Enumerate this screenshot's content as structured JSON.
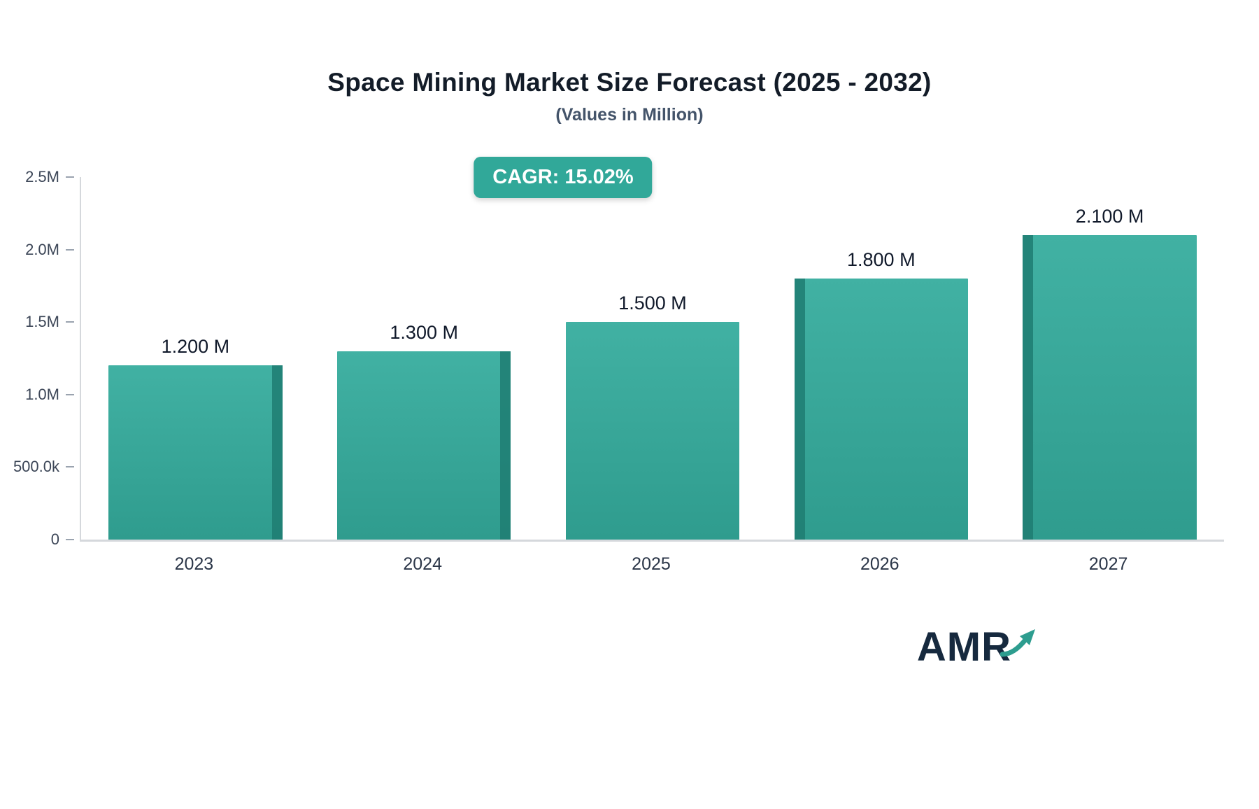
{
  "header": {
    "title": "Space Mining Market Size Forecast (2025 - 2032)",
    "subtitle": "(Values in Million)",
    "cagr_label": "CAGR: 15.02%"
  },
  "chart_data": {
    "type": "bar",
    "title": "Space Mining Market Size Forecast (2025 - 2032)",
    "subtitle": "(Values in Million)",
    "xlabel": "",
    "ylabel": "",
    "categories": [
      "2023",
      "2024",
      "2025",
      "2026",
      "2027"
    ],
    "values": [
      1200000,
      1300000,
      1500000,
      1800000,
      2100000
    ],
    "value_labels": [
      "1.200 M",
      "1.300 M",
      "1.500 M",
      "1.800 M",
      "2.100 M"
    ],
    "ylim": [
      0,
      2500000
    ],
    "y_ticks": [
      {
        "label": "0",
        "value": 0
      },
      {
        "label": "500.0k",
        "value": 500000
      },
      {
        "label": "1.0M",
        "value": 1000000
      },
      {
        "label": "1.5M",
        "value": 1500000
      },
      {
        "label": "2.0M",
        "value": 2000000
      },
      {
        "label": "2.5M",
        "value": 2500000
      }
    ],
    "grid": false,
    "legend": false,
    "colors": {
      "accent": "#31a899",
      "bar_top": "#41b1a3",
      "bar_bottom": "#2f9c8e",
      "bar_edge": "#1f7d72",
      "axis": "#d5d8dc"
    }
  },
  "branding": {
    "logo_text": "AMR",
    "logo_arrow_color": "#2d9d8f"
  }
}
